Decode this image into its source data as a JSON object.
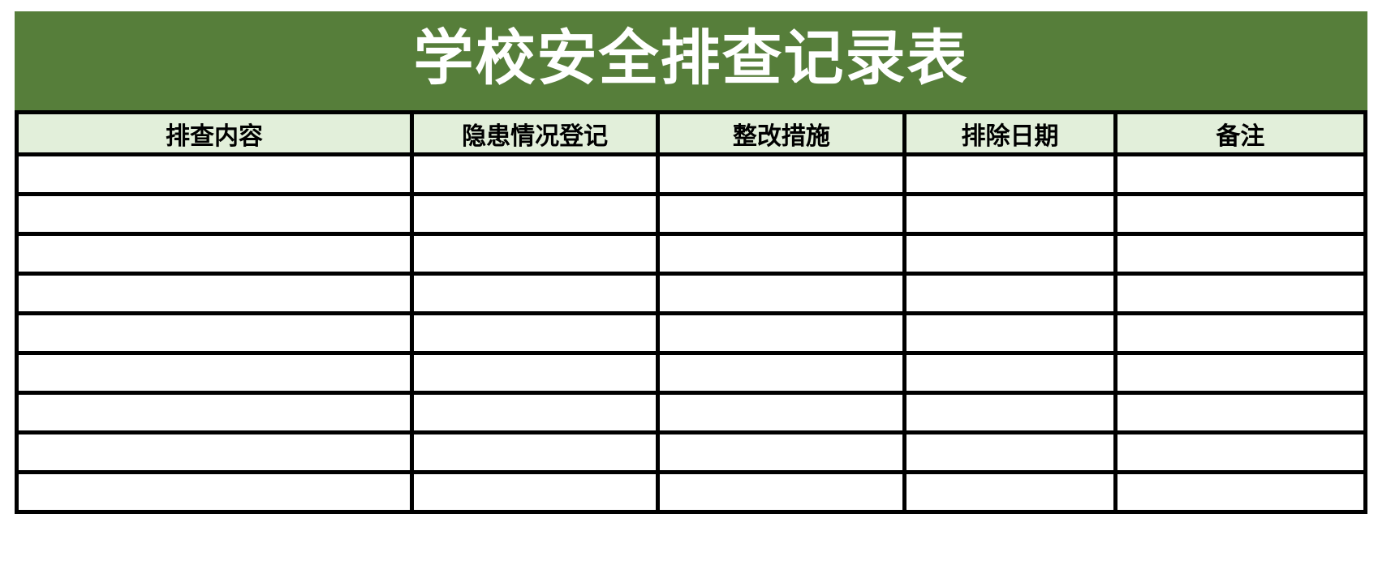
{
  "banner": {
    "title": "学校安全排查记录表",
    "background_color": "#567e3a",
    "text_color": "#ffffff"
  },
  "table": {
    "header_background": "#e2efda",
    "border_color": "#000000",
    "columns": [
      "排查内容",
      "隐患情况登记",
      "整改措施",
      "排除日期",
      "备注"
    ],
    "rows": [
      [
        "",
        "",
        "",
        "",
        ""
      ],
      [
        "",
        "",
        "",
        "",
        ""
      ],
      [
        "",
        "",
        "",
        "",
        ""
      ],
      [
        "",
        "",
        "",
        "",
        ""
      ],
      [
        "",
        "",
        "",
        "",
        ""
      ],
      [
        "",
        "",
        "",
        "",
        ""
      ],
      [
        "",
        "",
        "",
        "",
        ""
      ],
      [
        "",
        "",
        "",
        "",
        ""
      ],
      [
        "",
        "",
        "",
        "",
        ""
      ]
    ]
  }
}
